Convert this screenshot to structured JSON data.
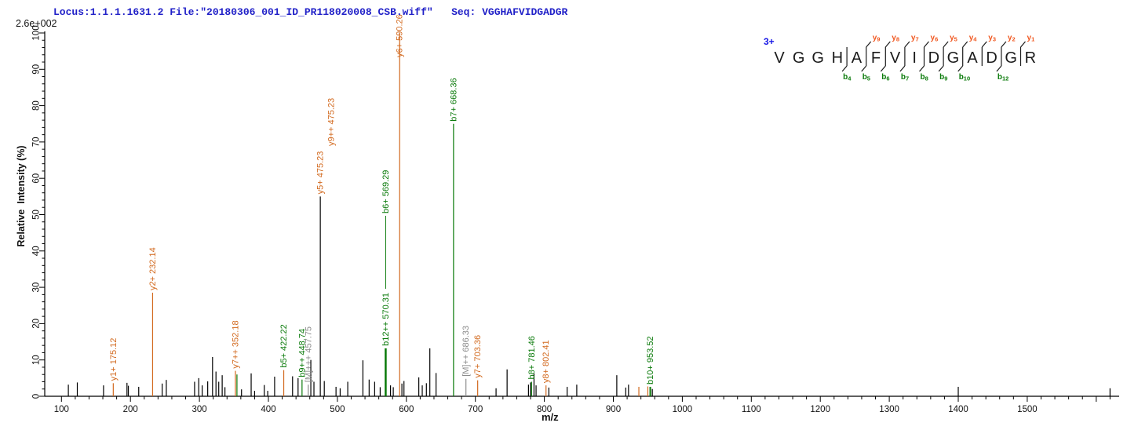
{
  "header": {
    "info_line": "Locus:1.1.1.1631.2 File:\"20180306_001_ID_PR118020008_CSB.wiff\"   Seq: VGGHAFVIDGADGR",
    "color": "#2121c8"
  },
  "axes": {
    "intensity_scale_label": "2.6e+002",
    "y_title": "Relative  Intensity (%)",
    "x_title": "m/z"
  },
  "chart_data": {
    "type": "bar",
    "subtype": "ms2-stick-spectrum",
    "title": "",
    "xlabel": "m/z",
    "ylabel": "Relative  Intensity (%)",
    "xlim": [
      100,
      1633
    ],
    "ylim": [
      0,
      100
    ],
    "x_major_tick_step": 100,
    "x_minor_tick_step": 20,
    "x_tick_labels": [
      100,
      200,
      300,
      400,
      500,
      600,
      700,
      800,
      900,
      1000,
      1100,
      1200,
      1300,
      1400,
      1500
    ],
    "y_major_tick_step": 10,
    "y_minor_tick_step": 2,
    "y_tick_labels": [
      0,
      10,
      20,
      30,
      40,
      50,
      60,
      70,
      80,
      90,
      100
    ],
    "grid": false,
    "intensity_scale": "2.6e+002",
    "colors": {
      "k": "#000000",
      "y": "#d2691e",
      "b": "#0a7a0a",
      "m": "#8c8c8c"
    },
    "peaks": [
      {
        "mz": 110,
        "h": 3.2,
        "c": "k"
      },
      {
        "mz": 123,
        "h": 3.8,
        "c": "k"
      },
      {
        "mz": 161,
        "h": 3.0,
        "c": "k"
      },
      {
        "mz": 175.12,
        "h": 3.6,
        "c": "y",
        "label": "y1+ 175.12"
      },
      {
        "mz": 195,
        "h": 3.7,
        "c": "k"
      },
      {
        "mz": 197,
        "h": 2.9,
        "c": "k"
      },
      {
        "mz": 212,
        "h": 2.6,
        "c": "k"
      },
      {
        "mz": 232.14,
        "h": 28.5,
        "c": "y",
        "label": "y2+ 232.14"
      },
      {
        "mz": 246,
        "h": 3.5,
        "c": "k"
      },
      {
        "mz": 252,
        "h": 4.5,
        "c": "k"
      },
      {
        "mz": 293,
        "h": 4.0,
        "c": "k"
      },
      {
        "mz": 299,
        "h": 5.0,
        "c": "k"
      },
      {
        "mz": 304,
        "h": 3.0,
        "c": "k"
      },
      {
        "mz": 312,
        "h": 4.1,
        "c": "k"
      },
      {
        "mz": 319,
        "h": 10.8,
        "c": "k"
      },
      {
        "mz": 324,
        "h": 6.8,
        "c": "k"
      },
      {
        "mz": 328,
        "h": 4.0,
        "c": "k"
      },
      {
        "mz": 333,
        "h": 5.8,
        "c": "k"
      },
      {
        "mz": 337,
        "h": 2.5,
        "c": "k"
      },
      {
        "mz": 352.18,
        "h": 7.0,
        "c": "y",
        "label": "y7++ 352.18"
      },
      {
        "mz": 354.4,
        "h": 6.0,
        "c": "b"
      },
      {
        "mz": 361,
        "h": 1.9,
        "c": "k"
      },
      {
        "mz": 375,
        "h": 6.3,
        "c": "k"
      },
      {
        "mz": 380,
        "h": 1.5,
        "c": "k"
      },
      {
        "mz": 394,
        "h": 3.1,
        "c": "k"
      },
      {
        "mz": 399,
        "h": 1.5,
        "c": "k"
      },
      {
        "mz": 409,
        "h": 5.4,
        "c": "k"
      },
      {
        "mz": 422.22,
        "h": 7.2,
        "c": "y",
        "label": "b5+ 422.22",
        "lc": "b"
      },
      {
        "mz": 435,
        "h": 5.5,
        "c": "k"
      },
      {
        "mz": 443,
        "h": 5.0,
        "c": "k"
      },
      {
        "mz": 448.74,
        "h": 4.6,
        "c": "b",
        "label": "b9++ 448.74"
      },
      {
        "mz": 457.75,
        "h": 3.2,
        "c": "m",
        "label": "[M]+++ 457.75"
      },
      {
        "mz": 461.5,
        "h": 10.0,
        "c": "k"
      },
      {
        "mz": 466,
        "h": 4.0,
        "c": "k"
      },
      {
        "mz": 475.23,
        "h": 55,
        "c": "k",
        "label": "y5+ 475.23",
        "lc": "y"
      },
      {
        "mz": 481,
        "h": 4.2,
        "c": "k"
      },
      {
        "mz": 498,
        "h": 2.6,
        "c": "k"
      },
      {
        "mz": 504,
        "h": 2.2,
        "c": "k"
      },
      {
        "mz": 515,
        "h": 4.0,
        "c": "k"
      },
      {
        "mz": 537,
        "h": 9.9,
        "c": "k"
      },
      {
        "mz": 546,
        "h": 4.6,
        "c": "k"
      },
      {
        "mz": 554,
        "h": 4.0,
        "c": "k"
      },
      {
        "mz": 562,
        "h": 2.5,
        "c": "k"
      },
      {
        "mz": 570.0,
        "h": 13.2,
        "c": "b",
        "label": "b12++ 570.31",
        "w": 2.5
      },
      {
        "mz": 577,
        "h": 3.0,
        "c": "k"
      },
      {
        "mz": 581,
        "h": 2.5,
        "c": "k"
      },
      {
        "mz": 590.26,
        "h": 100,
        "c": "y",
        "label": "y6+ 590.26",
        "yb": 73
      },
      {
        "mz": 593.5,
        "h": 3.5,
        "c": "k"
      },
      {
        "mz": 596.5,
        "h": 4.2,
        "c": "k"
      },
      {
        "mz": 618,
        "h": 5.2,
        "c": "k"
      },
      {
        "mz": 623,
        "h": 3.0,
        "c": "k"
      },
      {
        "mz": 629,
        "h": 3.6,
        "c": "k"
      },
      {
        "mz": 634,
        "h": 13.2,
        "c": "k"
      },
      {
        "mz": 643,
        "h": 6.4,
        "c": "k"
      },
      {
        "mz": 668.36,
        "h": 75,
        "c": "b",
        "label": "b7+ 668.36"
      },
      {
        "mz": 686.33,
        "h": 4.8,
        "c": "m",
        "label": "[M]++ 686.33"
      },
      {
        "mz": 703.36,
        "h": 4.4,
        "c": "y",
        "label": "y7+ 703.36"
      },
      {
        "mz": 730,
        "h": 2.2,
        "c": "k"
      },
      {
        "mz": 746,
        "h": 7.4,
        "c": "k"
      },
      {
        "mz": 777,
        "h": 3.2,
        "c": "k"
      },
      {
        "mz": 780,
        "h": 3.8,
        "c": "k"
      },
      {
        "mz": 781.46,
        "h": 4.0,
        "c": "b",
        "label": "b8+ 781.46"
      },
      {
        "mz": 785,
        "h": 6.2,
        "c": "k"
      },
      {
        "mz": 788,
        "h": 3.0,
        "c": "k"
      },
      {
        "mz": 802.41,
        "h": 3.0,
        "c": "y",
        "label": "y8+ 802.41"
      },
      {
        "mz": 806.5,
        "h": 2.4,
        "c": "k"
      },
      {
        "mz": 833,
        "h": 2.6,
        "c": "k"
      },
      {
        "mz": 847,
        "h": 3.2,
        "c": "k"
      },
      {
        "mz": 905,
        "h": 5.8,
        "c": "k"
      },
      {
        "mz": 918,
        "h": 2.4,
        "c": "k"
      },
      {
        "mz": 922,
        "h": 3.2,
        "c": "k"
      },
      {
        "mz": 937,
        "h": 2.6,
        "c": "y"
      },
      {
        "mz": 950,
        "h": 2.7,
        "c": "y"
      },
      {
        "mz": 953.52,
        "h": 2.6,
        "c": "b",
        "label": "b10+ 953.52",
        "w": 2
      },
      {
        "mz": 956.5,
        "h": 2.0,
        "c": "k"
      },
      {
        "mz": 1400,
        "h": 2.6,
        "c": "k"
      },
      {
        "mz": 1620,
        "h": 2.2,
        "c": "k"
      }
    ],
    "annotations": [
      {
        "text": "y9++ 475.23",
        "c": "y",
        "mz": 475.23,
        "dx": 14,
        "yb": 186
      },
      {
        "text": "b6+ 569.29",
        "c": "b",
        "mz": 570.0,
        "dx": 0,
        "yb": 272,
        "leader": [
          275,
          368
        ]
      }
    ]
  },
  "sequence_panel": {
    "charge": "3+",
    "residues": [
      "V",
      "G",
      "G",
      "H",
      "A",
      "F",
      "V",
      "I",
      "D",
      "G",
      "A",
      "D",
      "G",
      "R"
    ],
    "cleavages": [
      {
        "gap": 4,
        "b": "b4"
      },
      {
        "gap": 5,
        "y": "y9",
        "b": "b5"
      },
      {
        "gap": 6,
        "y": "y8",
        "b": "b6"
      },
      {
        "gap": 7,
        "y": "y7",
        "b": "b7"
      },
      {
        "gap": 8,
        "y": "y6",
        "b": "b8"
      },
      {
        "gap": 9,
        "y": "y5",
        "b": "b9"
      },
      {
        "gap": 10,
        "y": "y4",
        "b": "b10"
      },
      {
        "gap": 11,
        "y": "y3"
      },
      {
        "gap": 12,
        "y": "y2",
        "b": "b12"
      },
      {
        "gap": 13,
        "y": "y1"
      }
    ],
    "colors": {
      "charge": "#1515e6",
      "letter": "#1a1a1a",
      "y": "#f0561e",
      "b": "#0a7a0a"
    }
  }
}
